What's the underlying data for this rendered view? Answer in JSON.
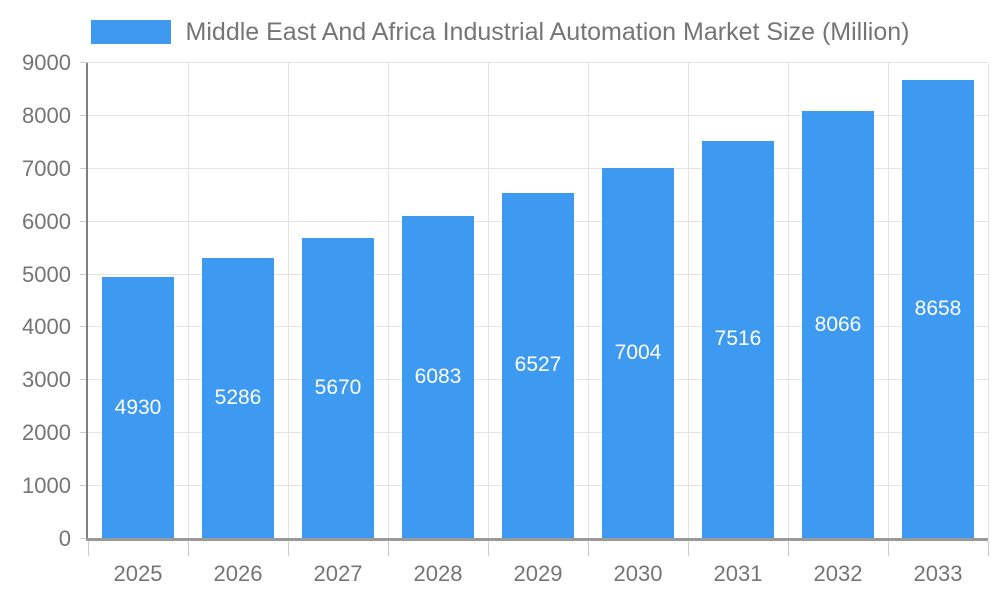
{
  "chart_data": {
    "type": "bar",
    "title": "Middle East And Africa Industrial Automation Market Size (Million)",
    "categories": [
      "2025",
      "2026",
      "2027",
      "2028",
      "2029",
      "2030",
      "2031",
      "2032",
      "2033"
    ],
    "series": [
      {
        "name": "Middle East And Africa Industrial Automation Market Size (Million)",
        "values": [
          4930,
          5286,
          5670,
          6083,
          6527,
          7004,
          7516,
          8066,
          8658
        ]
      }
    ],
    "xlabel": "",
    "ylabel": "",
    "ylim": [
      0,
      9000
    ],
    "ytick_step": 1000,
    "grid": true,
    "legend_position": "top",
    "value_labels_position": "inside-center",
    "colors": {
      "bar": "#3d9af0",
      "value_label_text": "#ffffff",
      "axis_text": "#757575",
      "gridline": "#e4e4e4",
      "axis_line": "#8c8c8c",
      "tick": "#cccccc",
      "background": "#ffffff"
    }
  }
}
